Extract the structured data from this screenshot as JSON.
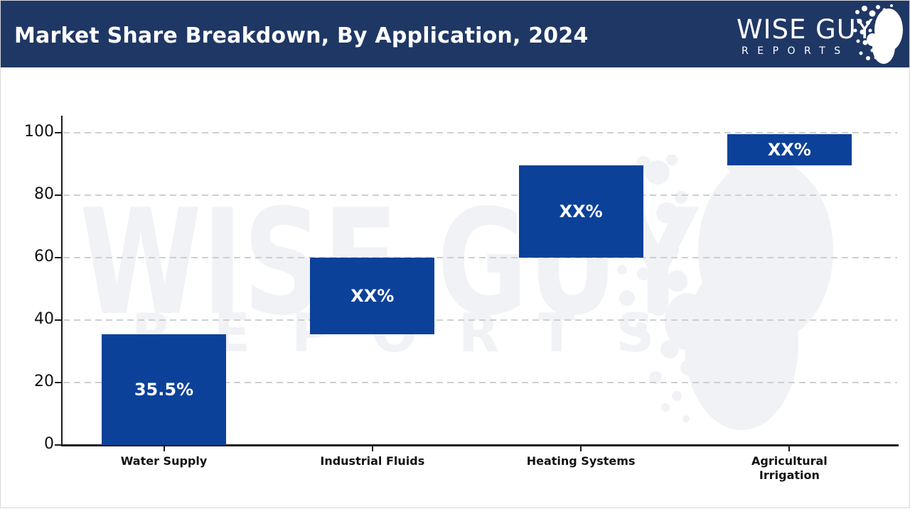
{
  "header": {
    "title": "Market Share Breakdown, By Application, 2024",
    "logo": {
      "name": "WISE GUY",
      "tagline": "REPORTS"
    }
  },
  "watermark": {
    "name": "WISE GUY",
    "tagline": "REPORTS"
  },
  "chart_data": {
    "type": "bar",
    "subtype": "waterfall",
    "title": "Market Share Breakdown, By Application, 2024",
    "categories": [
      "Water Supply",
      "Industrial Fluids",
      "Heating Systems",
      "Agricultural Irrigation"
    ],
    "segments": [
      {
        "category": "Water Supply",
        "start": 0,
        "end": 35.5,
        "value_label": "35.5%"
      },
      {
        "category": "Industrial Fluids",
        "start": 35.5,
        "end": 60,
        "value_label": "XX%"
      },
      {
        "category": "Heating Systems",
        "start": 60,
        "end": 89.5,
        "value_label": "XX%"
      },
      {
        "category": "Agricultural Irrigation",
        "start": 89.5,
        "end": 99.5,
        "value_label": "XX%"
      }
    ],
    "yticks": [
      0,
      20,
      40,
      60,
      80,
      100
    ],
    "ylim": [
      0,
      105
    ],
    "xlabel": "",
    "ylabel": "",
    "grid": "horizontal-dashed",
    "legend": "none",
    "bar_color": "#0c4199",
    "axis_color": "#1a1a1a",
    "grid_color": "#cfcfcf",
    "value_label_color": "#ffffff"
  },
  "colors": {
    "header_bg": "#1f3765",
    "canvas_bg": "#ffffff",
    "border": "#d8d8d8",
    "watermark": "#f0f2f5"
  }
}
